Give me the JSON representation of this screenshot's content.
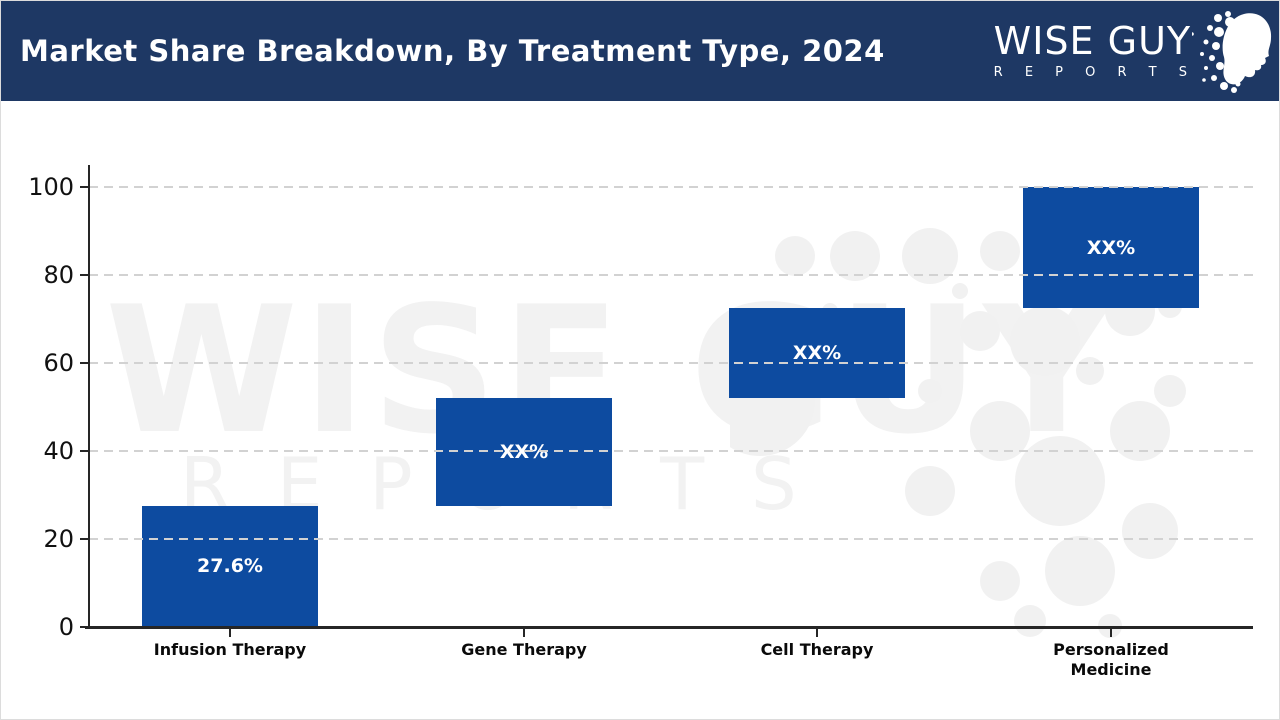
{
  "header": {
    "title": "Market Share Breakdown, By Treatment Type, 2024",
    "logo": {
      "line1": "WISE GUY",
      "line2": "R E P O R T S"
    }
  },
  "watermark": {
    "line1": "WISE GUY",
    "line2": "R E P O R T S"
  },
  "colors": {
    "header_bg": "#1e3864",
    "bar": "#0d4ba0",
    "bar_label_text": "#ffffff",
    "axis": "#262626",
    "gridline": "#d2d2d2",
    "watermark": "#f2f2f2"
  },
  "chart_data": {
    "type": "bar",
    "subtype": "waterfall",
    "title": "Market Share Breakdown, By Treatment Type, 2024",
    "categories": [
      "Infusion Therapy",
      "Gene Therapy",
      "Cell Therapy",
      "Personalized Medicine"
    ],
    "segments": [
      {
        "category": "Infusion Therapy",
        "start": 0,
        "end": 27.6,
        "label": "27.6%"
      },
      {
        "category": "Gene Therapy",
        "start": 27.6,
        "end": 52,
        "label": "XX%"
      },
      {
        "category": "Cell Therapy",
        "start": 52,
        "end": 72.4,
        "label": "XX%"
      },
      {
        "category": "Personalized Medicine",
        "start": 72.4,
        "end": 100,
        "label": "XX%"
      }
    ],
    "yticks": [
      0,
      20,
      40,
      60,
      80,
      100
    ],
    "ylim": [
      0,
      100
    ],
    "grid": "dashed-horizontal",
    "legend": "none"
  }
}
